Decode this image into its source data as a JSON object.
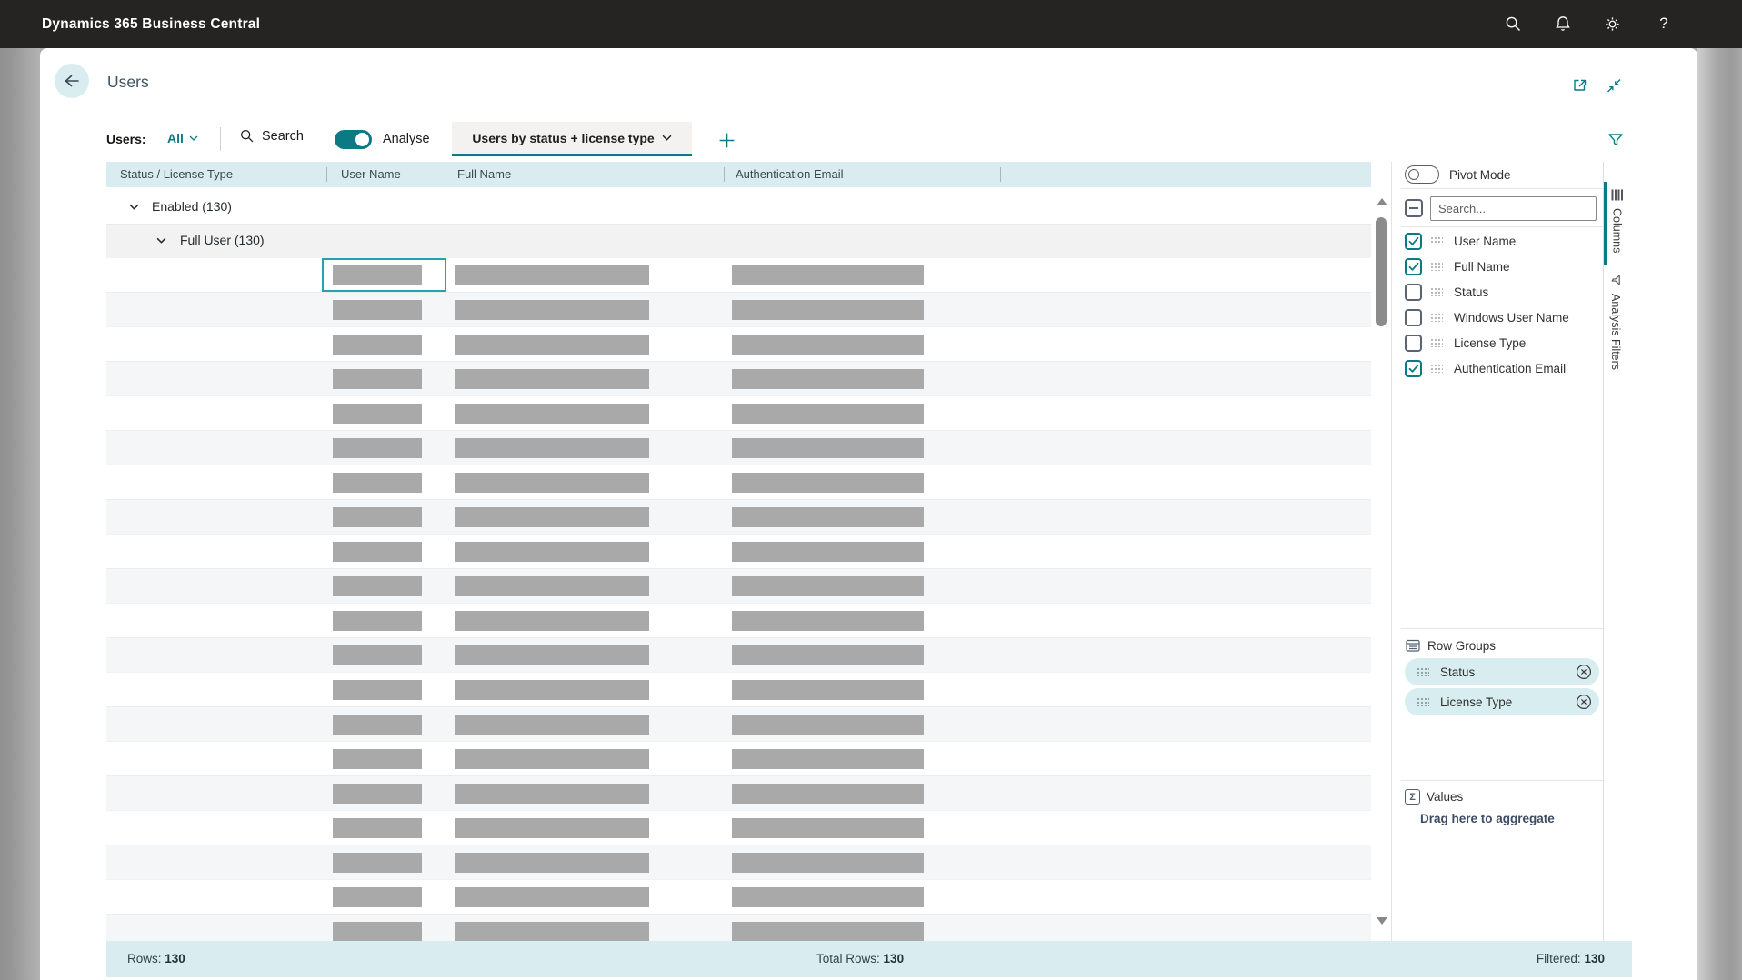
{
  "topbar": {
    "app_title": "Dynamics 365 Business Central"
  },
  "page": {
    "title": "Users"
  },
  "toolbar": {
    "filter_label": "Users:",
    "filter_value": "All",
    "search_label": "Search",
    "analyse_label": "Analyse",
    "tab_label": "Users by status + license type"
  },
  "table": {
    "columns": [
      "Status / License Type",
      "User Name",
      "Full Name",
      "Authentication Email"
    ],
    "groups": [
      {
        "label": "Enabled (130)"
      },
      {
        "label": "Full User (130)"
      }
    ],
    "redacted_row_count": 20,
    "selected_cell": {
      "row_index": 1,
      "column": "User Name"
    }
  },
  "columns_panel": {
    "pivot_mode_label": "Pivot Mode",
    "search_placeholder": "Search...",
    "fields": [
      {
        "label": "User Name",
        "checked": true
      },
      {
        "label": "Full Name",
        "checked": true
      },
      {
        "label": "Status",
        "checked": false
      },
      {
        "label": "Windows User Name",
        "checked": false
      },
      {
        "label": "License Type",
        "checked": false
      },
      {
        "label": "Authentication Email",
        "checked": true
      }
    ],
    "row_groups_label": "Row Groups",
    "row_groups": [
      "Status",
      "License Type"
    ],
    "values_label": "Values",
    "values_hint": "Drag here to aggregate"
  },
  "side_tabs": {
    "columns_label": "Columns",
    "filters_label": "Analysis Filters"
  },
  "status_bar": {
    "rows_label": "Rows:",
    "rows_value": "130",
    "total_label": "Total Rows:",
    "total_value": "130",
    "filtered_label": "Filtered:",
    "filtered_value": "130"
  },
  "colors": {
    "accent": "#0b7a84",
    "band": "#d9edf1",
    "redacted_bar": "#a9a9a9",
    "topbar": "#252423"
  }
}
